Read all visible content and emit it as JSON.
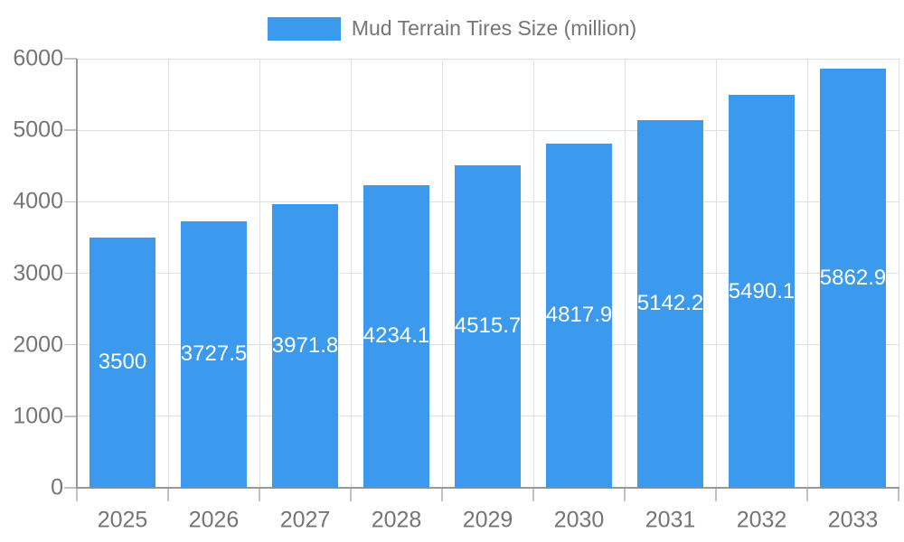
{
  "page": {
    "background": "#ffffff"
  },
  "legend": {
    "label": "Mud Terrain Tires Size (million)"
  },
  "chart_data": {
    "type": "bar",
    "title": "Mud Terrain Tires Size (million)",
    "series_name": "Mud Terrain Tires Size (million)",
    "categories": [
      "2025",
      "2026",
      "2027",
      "2028",
      "2029",
      "2030",
      "2031",
      "2032",
      "2033"
    ],
    "values": [
      3500,
      3727.5,
      3971.8,
      4234.1,
      4515.7,
      4817.9,
      5142.2,
      5490.1,
      5862.9
    ],
    "xlabel": "",
    "ylabel": "",
    "ylim": [
      0,
      6000
    ],
    "yticks": [
      0,
      1000,
      2000,
      3000,
      4000,
      5000,
      6000
    ],
    "grid": true,
    "legend_position": "top-center",
    "value_label_position": "inside-center",
    "colors": {
      "bar": "#3B99EE",
      "value_label": "#ffffff",
      "axis_line": "#999999",
      "grid_line": "#E0E0E0",
      "tick_mark": "#C2C2C2",
      "axis_text": "#757575"
    }
  }
}
